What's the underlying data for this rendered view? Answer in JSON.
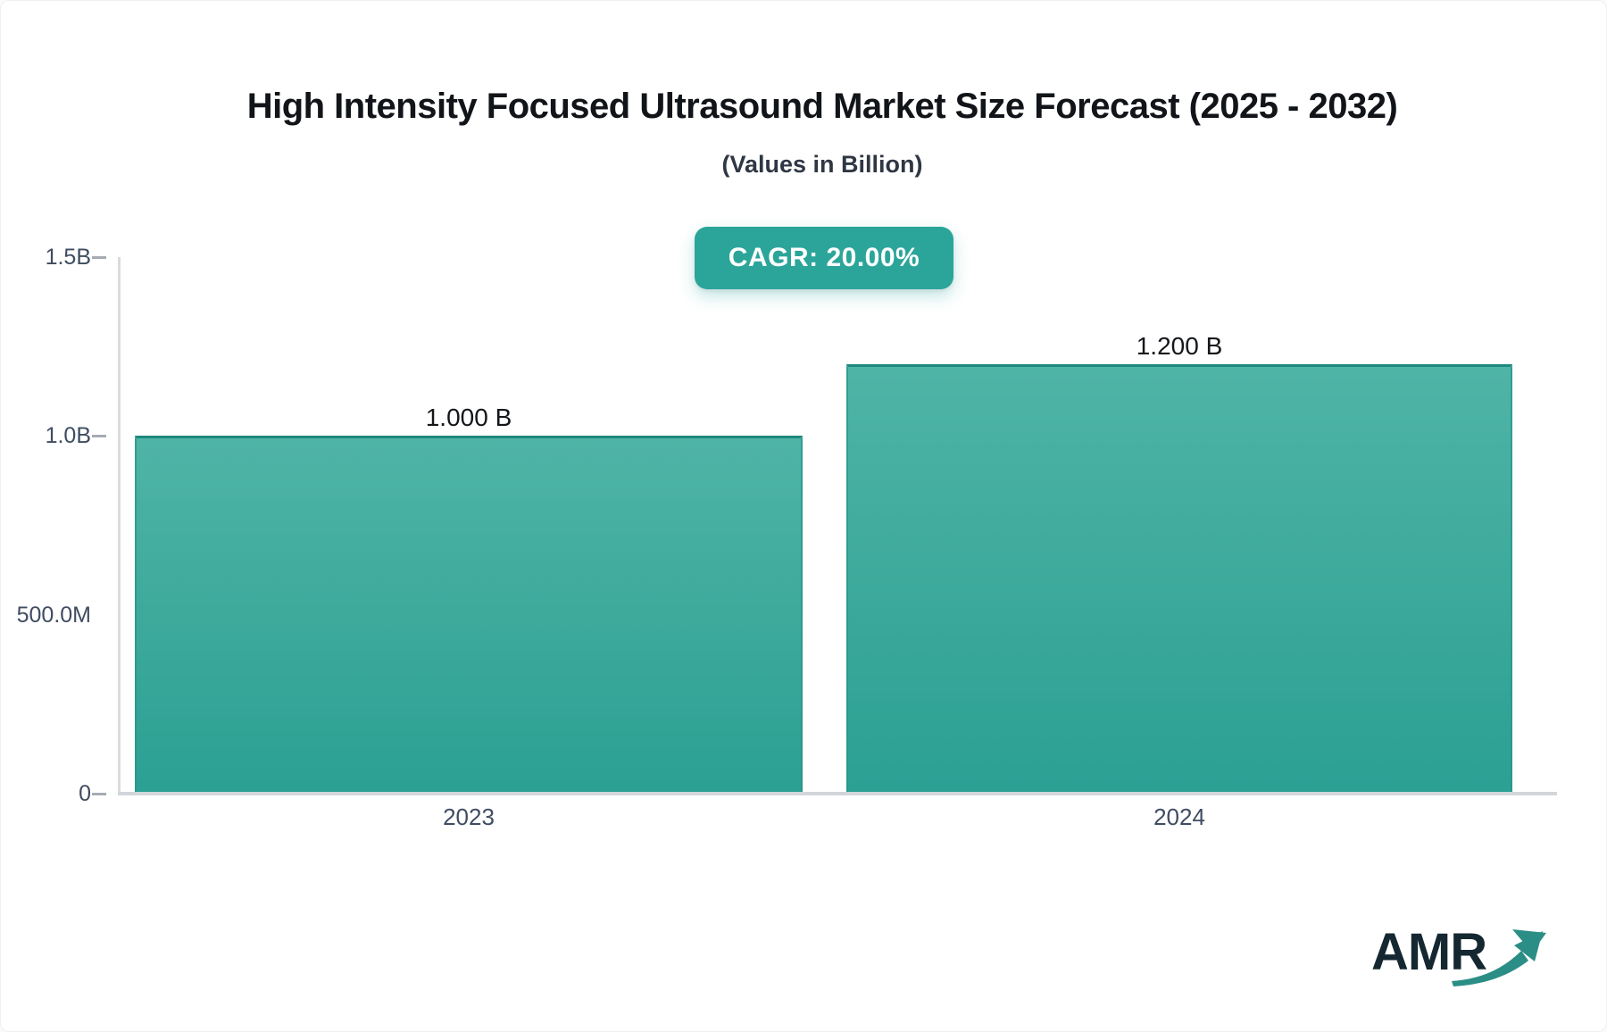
{
  "title": "High Intensity Focused Ultrasound Market Size Forecast (2025 - 2032)",
  "subtitle": "(Values in Billion)",
  "badge": {
    "label": "CAGR: 20.00%"
  },
  "logo": {
    "text": "AMR"
  },
  "colors": {
    "badge_teal": "#2ba59a",
    "bar_gradient_top": "#4fb4a6",
    "bar_gradient_bottom": "#2ba093",
    "bar_top_border": "#1e887e",
    "axis_line": "#d8dbdf",
    "axis_label": "#3f4c61",
    "logo_dark": "#152731",
    "logo_arrow_teal": "#2b8e86"
  },
  "chart_data": {
    "type": "bar",
    "title": "High Intensity Focused Ultrasound Market Size Forecast (2025 - 2032)",
    "subtitle": "(Values in Billion)",
    "categories": [
      "2023",
      "2024"
    ],
    "values_billion": [
      1.0,
      1.2
    ],
    "bar_labels": [
      "1.000 B",
      "1.200 B"
    ],
    "cagr_percent": "20.00%",
    "xlabel": "",
    "ylabel": "",
    "ylim_billion": [
      0,
      1.5
    ],
    "grid": false,
    "legend": "none",
    "y_ticks": [
      {
        "label": "0",
        "value_billion": 0.0,
        "dash": true
      },
      {
        "label": "500.0M",
        "value_billion": 0.5,
        "dash": false
      },
      {
        "label": "1.0B",
        "value_billion": 1.0,
        "dash": true
      },
      {
        "label": "1.5B",
        "value_billion": 1.5,
        "dash": true
      }
    ]
  }
}
